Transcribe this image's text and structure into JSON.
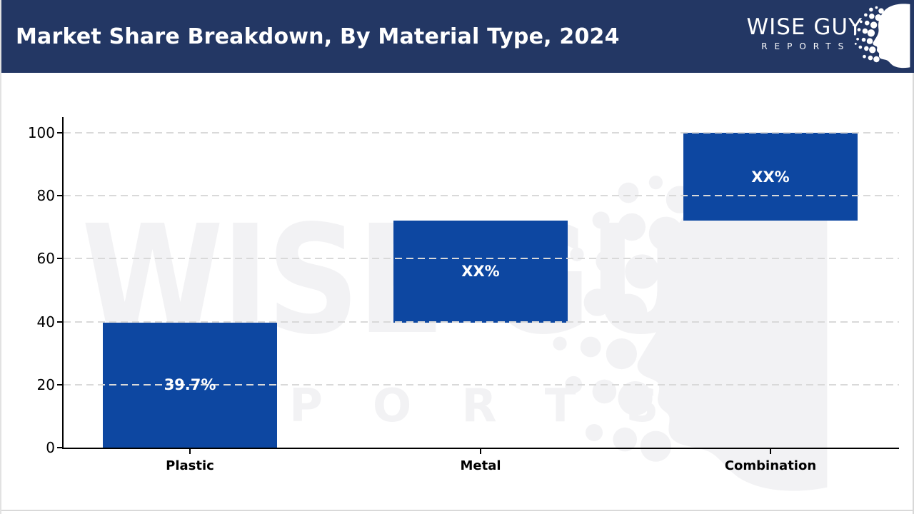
{
  "header": {
    "title": "Market Share Breakdown, By Material Type, 2024",
    "logo": {
      "line1": "WISE GUY",
      "line2": "REPORTS"
    }
  },
  "watermark": {
    "line1": "WISE GUY",
    "line2": "REPORTS"
  },
  "chart_data": {
    "type": "bar",
    "subtype": "waterfall",
    "title": "Market Share Breakdown, By Material Type, 2024",
    "categories": [
      "Plastic",
      "Metal",
      "Combination"
    ],
    "bars": [
      {
        "category": "Plastic",
        "start": 0,
        "end": 39.7,
        "value": 39.7,
        "label": "39.7%"
      },
      {
        "category": "Metal",
        "start": 39.7,
        "end": 72.1,
        "value": 32.4,
        "label": "XX%"
      },
      {
        "category": "Combination",
        "start": 72.1,
        "end": 100,
        "value": 27.9,
        "label": "XX%"
      }
    ],
    "yticks": [
      0,
      20,
      40,
      60,
      80,
      100
    ],
    "ylim": [
      0,
      105
    ],
    "xlabel": "",
    "ylabel": "",
    "grid": "horizontal-dashed",
    "legend": "none"
  },
  "colors": {
    "header_bg": "#233764",
    "bar": "#0d47a1",
    "bar_label": "#ffffff",
    "grid": "#d9d9d9",
    "axis": "#000000",
    "watermark": "#f2f2f4"
  }
}
